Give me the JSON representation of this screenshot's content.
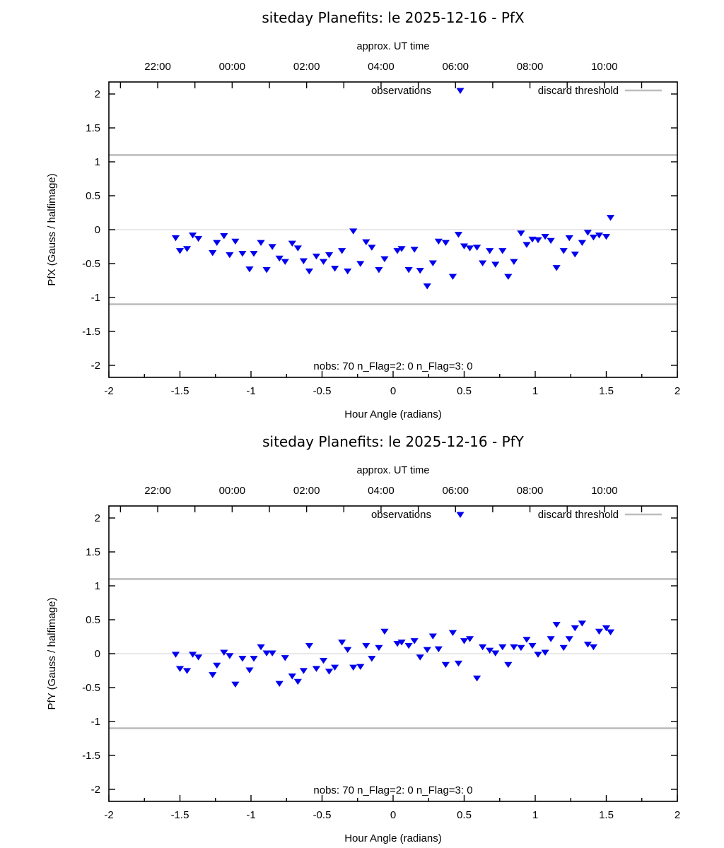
{
  "colors": {
    "observations": "#0000ee",
    "discard_threshold": "#bdbdbd",
    "zero_line": "#d9d9d9",
    "axis": "#000000",
    "background": "#ffffff"
  },
  "chart_data": [
    {
      "type": "scatter",
      "title": "siteday Planefits:  le  2025-12-16  -  PfX",
      "xlabel": "Hour Angle (radians)",
      "ylabel": "PfX (Gauss / halfimage)",
      "x2label": "approx. UT time",
      "x2_tick_labels": [
        "22:00",
        "00:00",
        "02:00",
        "04:00",
        "06:00",
        "08:00",
        "10:00"
      ],
      "xlim": [
        -2,
        2
      ],
      "ylim": [
        -2,
        2
      ],
      "x_tick_step": 0.5,
      "x_minor_step": 0.25,
      "y_tick_step": 0.5,
      "grid": false,
      "discard_threshold": [
        1.1,
        -1.1
      ],
      "zero_line": 0,
      "legend_position": "top-inside",
      "legend": [
        {
          "label": "observations",
          "marker": "triangle-down"
        },
        {
          "label": "discard threshold",
          "marker": "line"
        }
      ],
      "annotation": "nobs: 70   n_Flag=2: 0   n_Flag=3: 0",
      "series": [
        {
          "name": "observations",
          "x": [
            -1.53,
            -1.5,
            -1.45,
            -1.41,
            -1.37,
            -1.27,
            -1.24,
            -1.19,
            -1.15,
            -1.11,
            -1.06,
            -1.01,
            -0.98,
            -0.93,
            -0.89,
            -0.85,
            -0.8,
            -0.76,
            -0.71,
            -0.67,
            -0.63,
            -0.59,
            -0.54,
            -0.49,
            -0.45,
            -0.41,
            -0.36,
            -0.32,
            -0.28,
            -0.23,
            -0.19,
            -0.15,
            -0.1,
            -0.06,
            0.03,
            0.06,
            0.11,
            0.15,
            0.19,
            0.24,
            0.28,
            0.32,
            0.37,
            0.42,
            0.46,
            0.5,
            0.54,
            0.59,
            0.63,
            0.68,
            0.72,
            0.77,
            0.81,
            0.85,
            0.9,
            0.94,
            0.98,
            1.02,
            1.07,
            1.11,
            1.15,
            1.2,
            1.24,
            1.28,
            1.33,
            1.37,
            1.41,
            1.45,
            1.5,
            1.53
          ],
          "y": [
            -0.12,
            -0.31,
            -0.28,
            -0.08,
            -0.13,
            -0.34,
            -0.19,
            -0.09,
            -0.37,
            -0.17,
            -0.35,
            -0.58,
            -0.35,
            -0.19,
            -0.59,
            -0.25,
            -0.42,
            -0.47,
            -0.2,
            -0.27,
            -0.46,
            -0.61,
            -0.39,
            -0.47,
            -0.37,
            -0.57,
            -0.31,
            -0.61,
            -0.02,
            -0.5,
            -0.18,
            -0.26,
            -0.59,
            -0.43,
            -0.31,
            -0.28,
            -0.59,
            -0.29,
            -0.6,
            -0.83,
            -0.49,
            -0.17,
            -0.19,
            -0.69,
            -0.07,
            -0.24,
            -0.27,
            -0.26,
            -0.49,
            -0.31,
            -0.51,
            -0.31,
            -0.69,
            -0.47,
            -0.05,
            -0.22,
            -0.14,
            -0.15,
            -0.1,
            -0.16,
            -0.56,
            -0.31,
            -0.12,
            -0.36,
            -0.19,
            -0.04,
            -0.11,
            -0.08,
            -0.1,
            0.18
          ]
        }
      ]
    },
    {
      "type": "scatter",
      "title": "siteday Planefits:  le  2025-12-16  -  PfY",
      "xlabel": "Hour Angle (radians)",
      "ylabel": "PfY (Gauss / halfimage)",
      "x2label": "approx. UT time",
      "x2_tick_labels": [
        "22:00",
        "00:00",
        "02:00",
        "04:00",
        "06:00",
        "08:00",
        "10:00"
      ],
      "xlim": [
        -2,
        2
      ],
      "ylim": [
        -2,
        2
      ],
      "x_tick_step": 0.5,
      "x_minor_step": 0.25,
      "y_tick_step": 0.5,
      "grid": false,
      "discard_threshold": [
        1.1,
        -1.1
      ],
      "zero_line": 0,
      "legend_position": "top-inside",
      "legend": [
        {
          "label": "observations",
          "marker": "triangle-down"
        },
        {
          "label": "discard threshold",
          "marker": "line"
        }
      ],
      "annotation": "nobs: 70   n_Flag=2: 0   n_Flag=3: 0",
      "series": [
        {
          "name": "observations",
          "x": [
            -1.53,
            -1.5,
            -1.45,
            -1.41,
            -1.37,
            -1.27,
            -1.24,
            -1.19,
            -1.15,
            -1.11,
            -1.06,
            -1.01,
            -0.98,
            -0.93,
            -0.89,
            -0.85,
            -0.8,
            -0.76,
            -0.71,
            -0.67,
            -0.63,
            -0.59,
            -0.54,
            -0.49,
            -0.45,
            -0.41,
            -0.36,
            -0.32,
            -0.28,
            -0.23,
            -0.19,
            -0.15,
            -0.1,
            -0.06,
            0.03,
            0.06,
            0.11,
            0.15,
            0.19,
            0.24,
            0.28,
            0.32,
            0.37,
            0.42,
            0.46,
            0.5,
            0.54,
            0.59,
            0.63,
            0.68,
            0.72,
            0.77,
            0.81,
            0.85,
            0.9,
            0.94,
            0.98,
            1.02,
            1.07,
            1.11,
            1.15,
            1.2,
            1.24,
            1.28,
            1.33,
            1.37,
            1.41,
            1.45,
            1.5,
            1.53
          ],
          "y": [
            -0.01,
            -0.22,
            -0.25,
            -0.01,
            -0.05,
            -0.31,
            -0.17,
            0.02,
            -0.03,
            -0.45,
            -0.07,
            -0.24,
            -0.07,
            0.1,
            0.01,
            0.01,
            -0.44,
            -0.06,
            -0.33,
            -0.41,
            -0.25,
            0.12,
            -0.22,
            -0.1,
            -0.26,
            -0.2,
            0.17,
            0.06,
            -0.2,
            -0.19,
            0.12,
            -0.07,
            0.09,
            0.33,
            0.15,
            0.17,
            0.12,
            0.19,
            -0.05,
            0.06,
            0.26,
            0.07,
            -0.16,
            0.31,
            -0.14,
            0.19,
            0.22,
            -0.36,
            0.1,
            0.05,
            0.01,
            0.1,
            -0.16,
            0.1,
            0.09,
            0.21,
            0.12,
            -0.01,
            0.02,
            0.22,
            0.43,
            0.09,
            0.22,
            0.38,
            0.45,
            0.14,
            0.1,
            0.33,
            0.38,
            0.32
          ]
        }
      ]
    }
  ]
}
